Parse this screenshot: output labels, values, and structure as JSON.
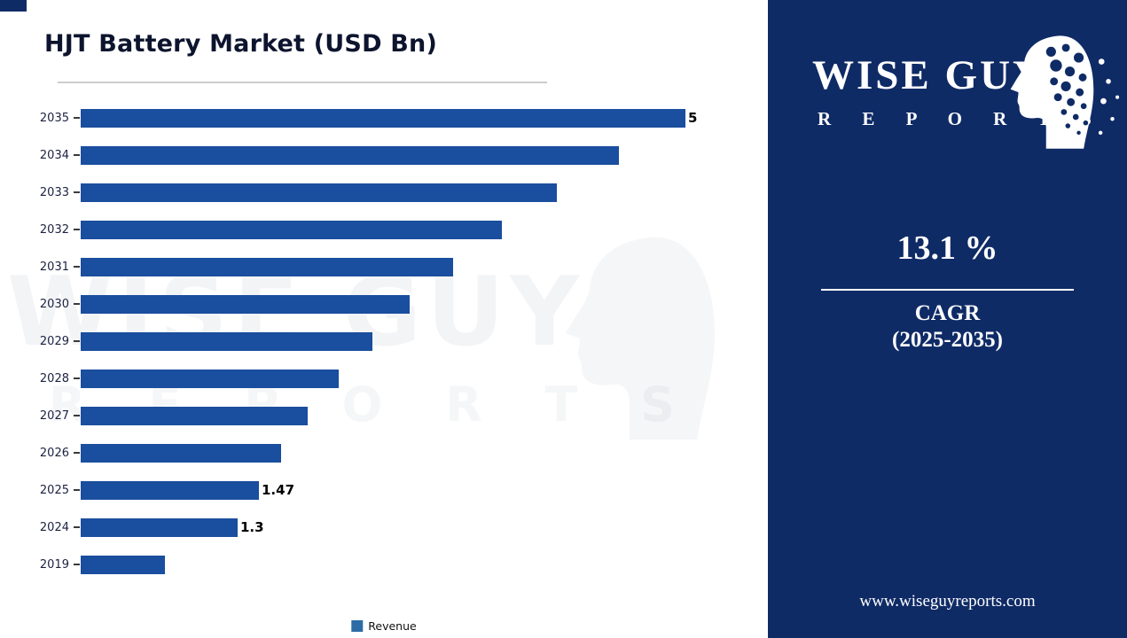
{
  "title": "HJT Battery Market (USD Bn)",
  "chart_data": {
    "type": "bar",
    "orientation": "horizontal",
    "title": "HJT Battery Market (USD Bn)",
    "xlabel": "",
    "ylabel": "",
    "xlim": [
      0,
      5.25
    ],
    "grid": false,
    "legend_position": "bottom",
    "series_name": "Revenue",
    "categories": [
      "2035",
      "2034",
      "2033",
      "2032",
      "2031",
      "2030",
      "2029",
      "2028",
      "2027",
      "2026",
      "2025",
      "2024",
      "2019"
    ],
    "values": [
      5.0,
      4.45,
      3.94,
      3.48,
      3.08,
      2.72,
      2.41,
      2.13,
      1.88,
      1.66,
      1.47,
      1.3,
      0.7
    ],
    "value_labels": {
      "2035": "5",
      "2025": "1.47",
      "2024": "1.3"
    },
    "bar_color": "#1a4e9e"
  },
  "legend": {
    "label": "Revenue",
    "color": "#2d6ca5"
  },
  "watermark": {
    "line1": "WISE GUY",
    "line2": "R E P O R T S"
  },
  "panel": {
    "logo_line1": "WISE GUY",
    "logo_line2": "R E P O R T S",
    "cagr_value": "13.1 %",
    "cagr_label": "CAGR",
    "cagr_range": "(2025-2035)",
    "website": "www.wiseguyreports.com",
    "bg_color": "#0f2b66"
  }
}
